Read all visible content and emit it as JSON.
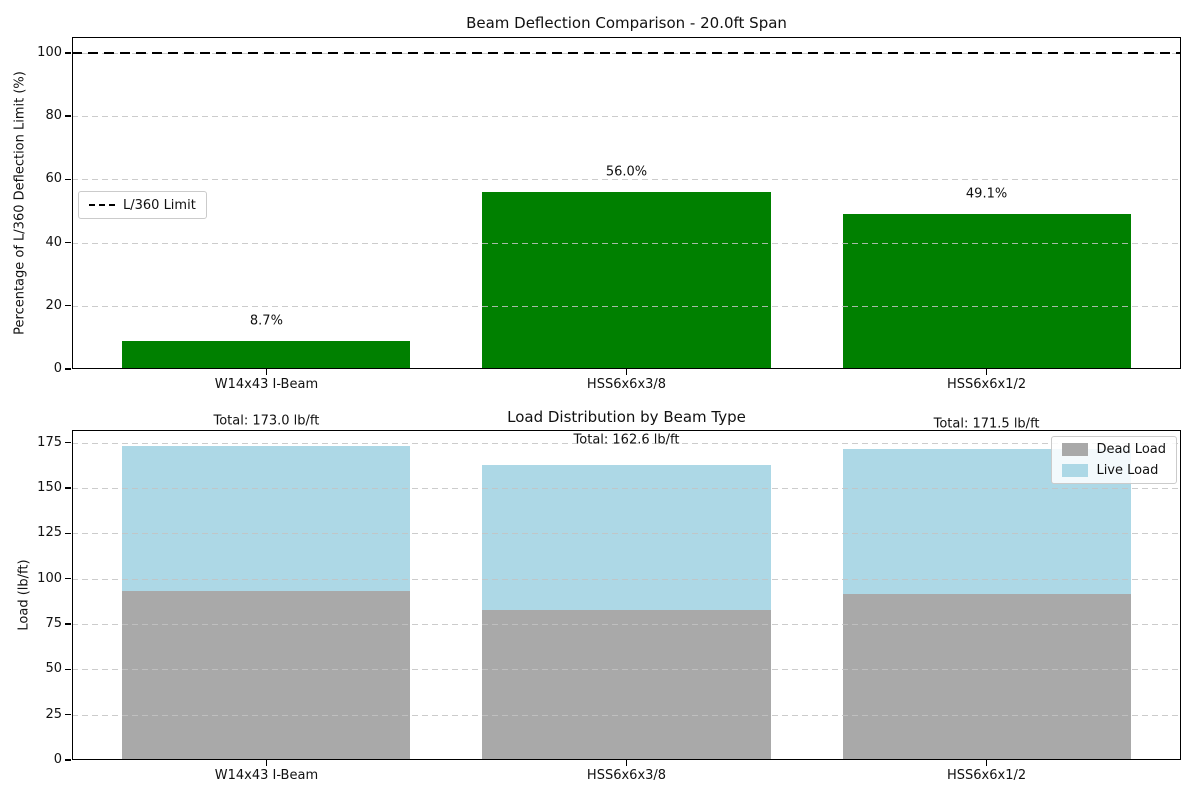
{
  "figure": {
    "background": "#ffffff"
  },
  "chart_data": [
    {
      "type": "bar",
      "title": "Beam Deflection Comparison - 20.0ft Span",
      "xlabel": "",
      "ylabel": "Percentage of L/360 Deflection Limit (%)",
      "categories": [
        "W14x43 I-Beam",
        "HSS6x6x3/8",
        "HSS6x6x1/2"
      ],
      "values": [
        8.7,
        56.0,
        49.1
      ],
      "bar_labels": [
        "8.7%",
        "56.0%",
        "49.1%"
      ],
      "bar_color": "#008000",
      "ylim": [
        0,
        105
      ],
      "yticks": [
        0,
        20,
        40,
        60,
        80,
        100
      ],
      "grid": true,
      "grid_style": "dashed",
      "hline": {
        "y": 100,
        "color": "#000000",
        "style": "dashed",
        "label": "L/360 Limit"
      },
      "legend": {
        "position": "center-left",
        "entries": [
          {
            "label": "L/360 Limit",
            "swatch": "dashed-line",
            "color": "#000000"
          }
        ]
      }
    },
    {
      "type": "stacked-bar",
      "title": "Load Distribution by Beam Type",
      "xlabel": "",
      "ylabel": "Load (lb/ft)",
      "categories": [
        "W14x43 I-Beam",
        "HSS6x6x3/8",
        "HSS6x6x1/2"
      ],
      "series": [
        {
          "name": "Dead Load",
          "color": "#a9a9a9",
          "values": [
            93.0,
            82.6,
            91.5
          ]
        },
        {
          "name": "Live Load",
          "color": "#add8e6",
          "values": [
            80.0,
            80.0,
            80.0
          ]
        }
      ],
      "totals": [
        173.0,
        162.6,
        171.5
      ],
      "total_labels": [
        "Total: 173.0 lb/ft",
        "Total: 162.6 lb/ft",
        "Total: 171.5 lb/ft"
      ],
      "ylim": [
        0,
        182
      ],
      "yticks": [
        0,
        25,
        50,
        75,
        100,
        125,
        150,
        175
      ],
      "grid": true,
      "grid_style": "dashed",
      "legend": {
        "position": "top-right",
        "entries": [
          {
            "label": "Dead Load",
            "swatch": "patch",
            "color": "#a9a9a9"
          },
          {
            "label": "Live Load",
            "swatch": "patch",
            "color": "#add8e6"
          }
        ]
      }
    }
  ]
}
